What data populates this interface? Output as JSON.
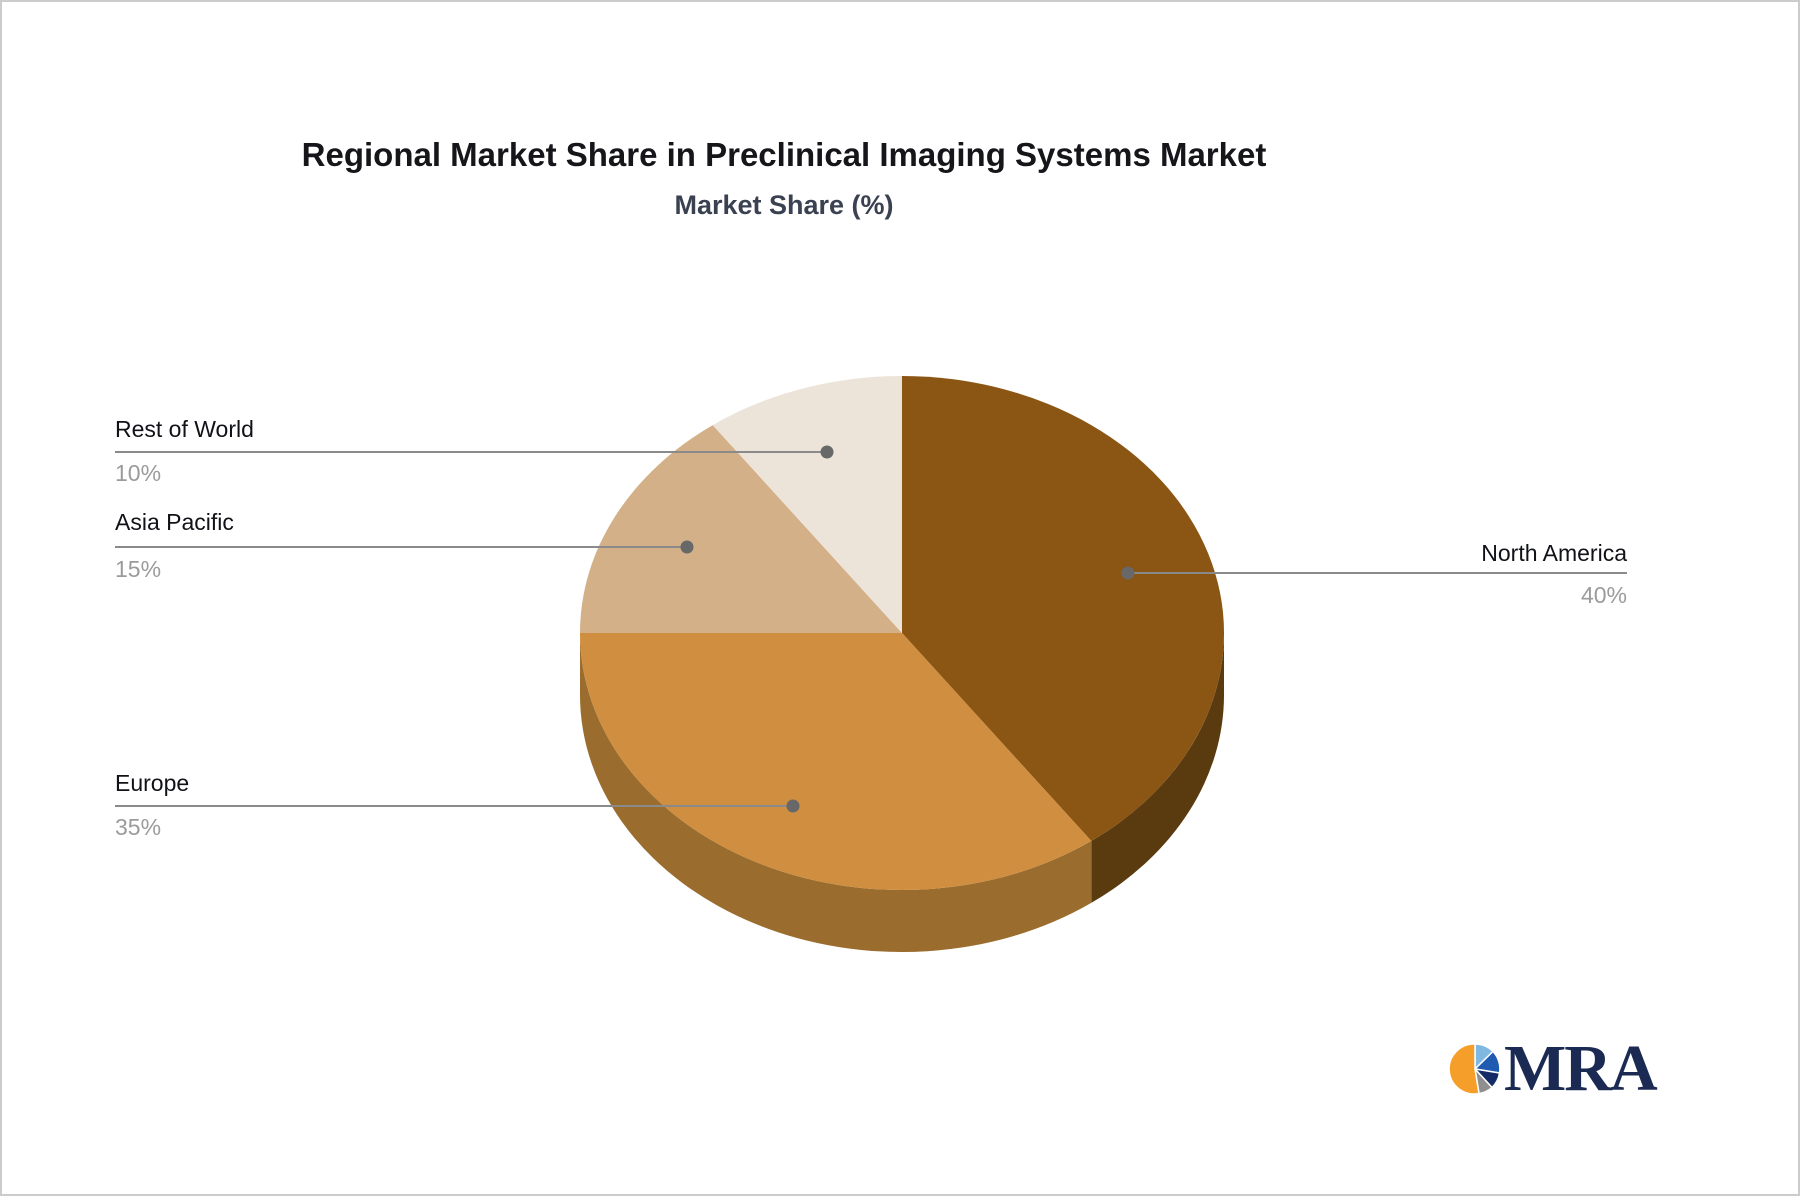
{
  "title": "Regional Market Share in Preclinical Imaging Systems Market",
  "subtitle": "Market Share (%)",
  "chart_data": {
    "type": "pie",
    "style": "3d",
    "title": "Regional Market Share in Preclinical Imaging Systems Market",
    "subtitle": "Market Share (%)",
    "unit": "%",
    "start_angle_deg": 0,
    "direction": "clockwise",
    "legend": "none",
    "slices": [
      {
        "label": "North America",
        "value": 40,
        "value_text": "40%",
        "color": "#8B5614",
        "side_color": "#5A3B10"
      },
      {
        "label": "Europe",
        "value": 35,
        "value_text": "35%",
        "color": "#D08E40",
        "side_color": "#9A6C2E"
      },
      {
        "label": "Asia Pacific",
        "value": 15,
        "value_text": "15%",
        "color": "#D3B088",
        "side_color": "#AD8C62"
      },
      {
        "label": "Rest of World",
        "value": 10,
        "value_text": "10%",
        "color": "#ECE4D9",
        "side_color": "#C4B8A9"
      }
    ],
    "connector_color": "#8a8a8a",
    "connector_dot_color": "#686868"
  },
  "logo": {
    "text": "MRA"
  }
}
